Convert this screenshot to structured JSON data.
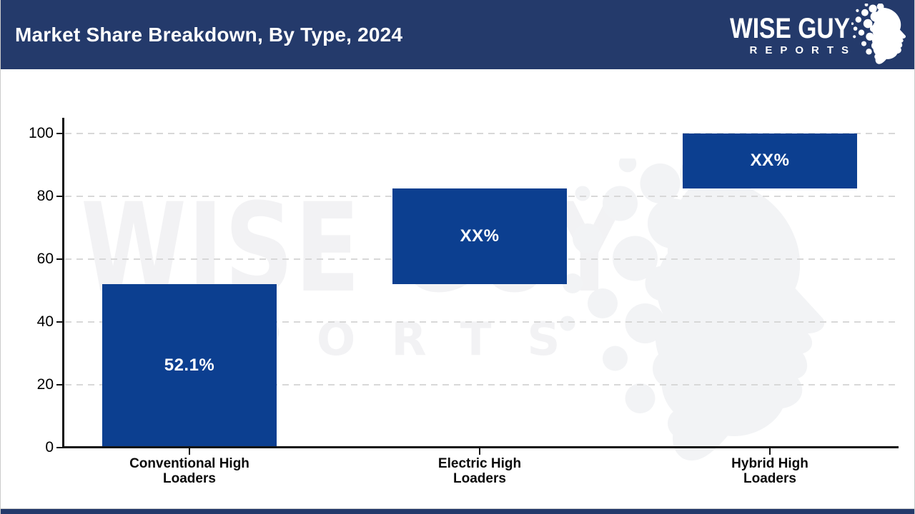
{
  "header": {
    "title": "Market Share Breakdown, By Type, 2024",
    "logo": {
      "wordmark": "WISE GUY",
      "subtext": "REPORTS"
    }
  },
  "watermark": {
    "wordmark": "WISE GUY",
    "subtext": "REPORTS"
  },
  "chart_data": {
    "type": "bar",
    "subtype": "waterfall-breakdown",
    "title": "Market Share Breakdown, By Type, 2024",
    "categories": [
      "Conventional High\nLoaders",
      "Electric High\nLoaders",
      "Hybrid High\nLoaders"
    ],
    "series": [
      {
        "name": "Conventional High Loaders",
        "start": 0,
        "end": 52.1,
        "label": "52.1%"
      },
      {
        "name": "Electric High Loaders",
        "start": 52.1,
        "end": 82.6,
        "label": "XX%"
      },
      {
        "name": "Hybrid High Loaders",
        "start": 82.6,
        "end": 100,
        "label": "XX%"
      }
    ],
    "xlabel": "",
    "ylabel": "",
    "ylim": [
      0,
      100
    ],
    "yticks": [
      0,
      20,
      40,
      60,
      80,
      100
    ],
    "grid": "horizontal-dashed",
    "legend": "none",
    "bar_color": "#0c3f90",
    "bar_label_color": "#ffffff"
  },
  "colors": {
    "header_bg": "#243a6b",
    "footer_bg": "#243a6b",
    "axis": "#111111",
    "grid": "#d8d8d8",
    "watermark": "#f2f2f4"
  }
}
